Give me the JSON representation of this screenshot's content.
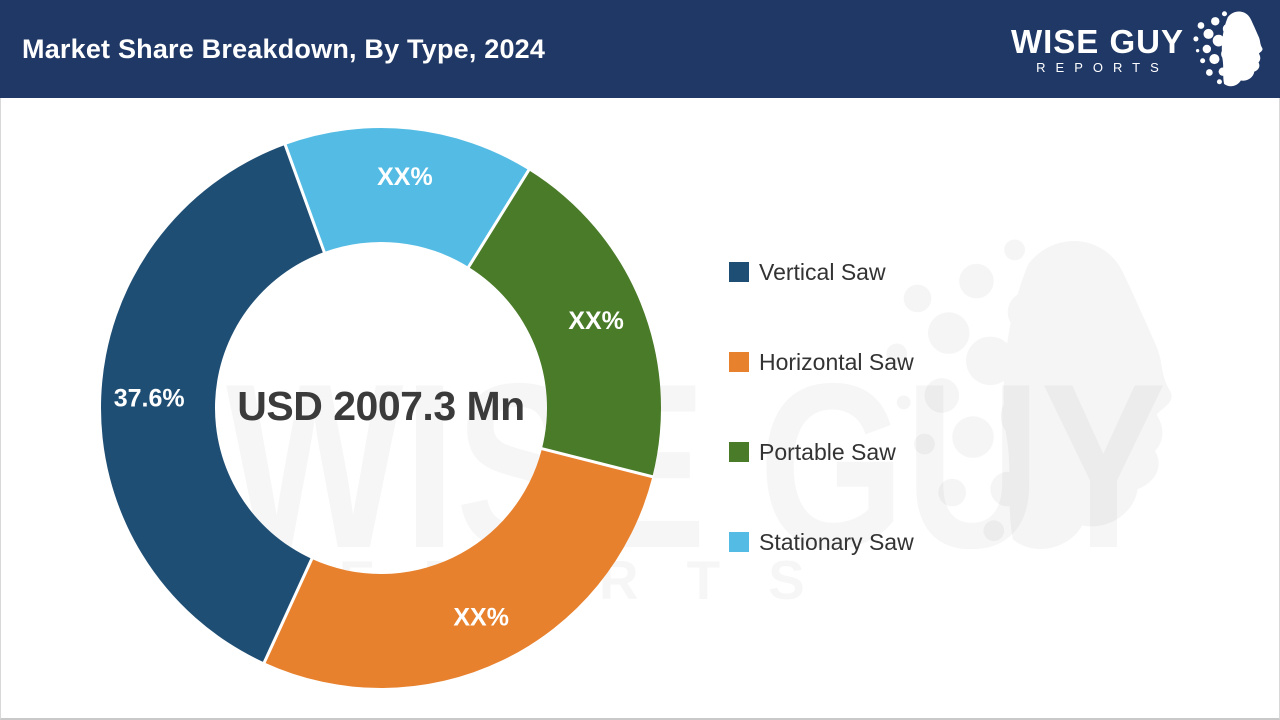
{
  "header": {
    "title": "Market Share Breakdown, By Type, 2024",
    "logo": {
      "line1": "WISE GUY",
      "line2": "REPORTS"
    }
  },
  "watermark": {
    "line1": "WISE GUY",
    "line2": "REPORTS"
  },
  "chart_data": {
    "type": "pie",
    "subtype": "donut",
    "title": "Market Share Breakdown, By Type, 2024",
    "center_label": "USD 2007.3 Mn",
    "units": "percent",
    "start_angle_deg": 110,
    "direction": "counterclockwise",
    "legend_position": "right",
    "series": [
      {
        "name": "Vertical Saw",
        "value": 37.6,
        "display_label": "37.6%",
        "color": "#1F4E74"
      },
      {
        "name": "Horizontal Saw",
        "value": 27.9,
        "display_label": "XX%",
        "color": "#E8812D"
      },
      {
        "name": "Portable Saw",
        "value": 20.1,
        "display_label": "XX%",
        "color": "#4A7B28"
      },
      {
        "name": "Stationary Saw",
        "value": 14.4,
        "display_label": "XX%",
        "color": "#54BCE4"
      }
    ]
  },
  "colors": {
    "header_bg": "#203866",
    "center_text": "#3B3B3B",
    "legend_text": "#333333",
    "slice_label_text": "#FFFFFF",
    "watermark": "#F4F4F4"
  }
}
